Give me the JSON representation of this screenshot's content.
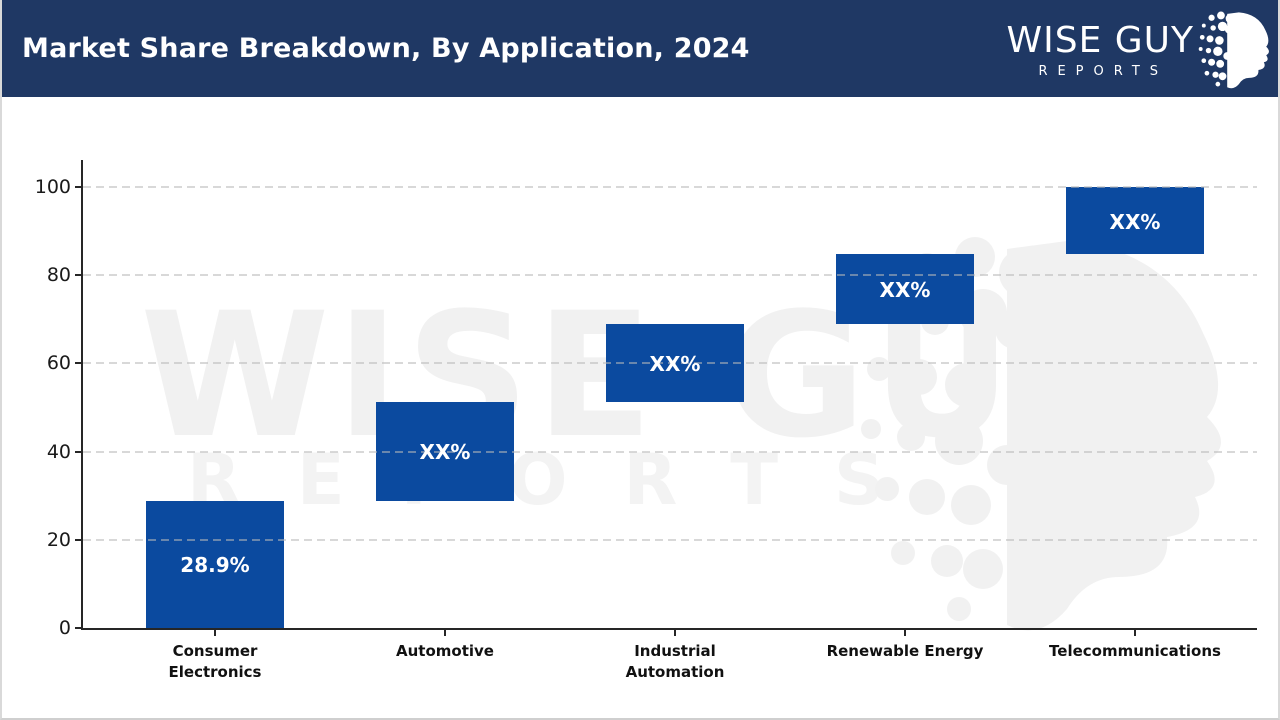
{
  "header": {
    "title": "Market Share Breakdown, By Application, 2024",
    "bg_color": "#1f3864",
    "brand": {
      "name": "WISE GUY",
      "tagline": "REPORTS"
    }
  },
  "watermark": {
    "line1": "WISE GUY",
    "line2": "REPORTS"
  },
  "chart_data": {
    "type": "bar",
    "subtype": "waterfall",
    "title": "Market Share Breakdown, By Application, 2024",
    "xlabel": "",
    "ylabel": "",
    "ylim": [
      0,
      106
    ],
    "yticks": [
      0,
      20,
      40,
      60,
      80,
      100
    ],
    "grid": "horizontal-dashed-above-bars",
    "legend": "none",
    "bar_color": "#0b4a9f",
    "value_label_color": "#ffffff",
    "categories": [
      "Consumer Electronics",
      "Automotive",
      "Industrial Automation",
      "Renewable Energy",
      "Telecommunications"
    ],
    "category_label_lines": [
      [
        "Consumer",
        "Electronics"
      ],
      [
        "Automotive"
      ],
      [
        "Industrial",
        "Automation"
      ],
      [
        "Renewable Energy"
      ],
      [
        "Telecommunications"
      ]
    ],
    "segments": [
      {
        "category": "Consumer Electronics",
        "start": 0,
        "end": 28.9,
        "label": "28.9%"
      },
      {
        "category": "Automotive",
        "start": 28.9,
        "end": 51.3,
        "label": "XX%"
      },
      {
        "category": "Industrial Automation",
        "start": 51.3,
        "end": 69.0,
        "label": "XX%"
      },
      {
        "category": "Renewable Energy",
        "start": 69.0,
        "end": 84.7,
        "label": "XX%"
      },
      {
        "category": "Telecommunications",
        "start": 84.7,
        "end": 100,
        "label": "XX%"
      }
    ]
  }
}
